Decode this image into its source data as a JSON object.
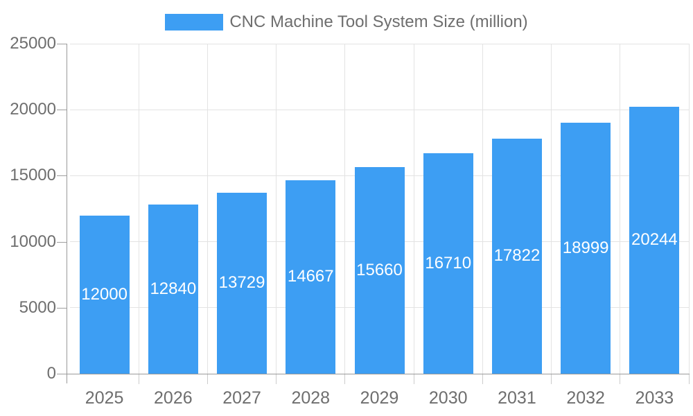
{
  "legend": {
    "label": "CNC Machine Tool System Size (million)"
  },
  "chart_data": {
    "type": "bar",
    "title": "CNC Machine Tool System Size (million)",
    "categories": [
      "2025",
      "2026",
      "2027",
      "2028",
      "2029",
      "2030",
      "2031",
      "2032",
      "2033"
    ],
    "values": [
      12000,
      12840,
      13729,
      14667,
      15660,
      16710,
      17822,
      18999,
      20244
    ],
    "series_name": "CNC Machine Tool System Size (million)",
    "xlabel": "",
    "ylabel": "",
    "ylim": [
      0,
      25000
    ],
    "yticks": [
      0,
      5000,
      10000,
      15000,
      20000,
      25000
    ],
    "grid": true,
    "legend_position": "top-center",
    "value_label_position": "inside-middle",
    "colors": {
      "bar": "#3D9EF3",
      "value_label": "#FFFFFF",
      "axis_line": "#999999",
      "grid_line": "#E3E3E3",
      "y_tick": "#9E9E9E",
      "x_tick": "#CCCCCC",
      "text": "#6E6E6E"
    }
  }
}
